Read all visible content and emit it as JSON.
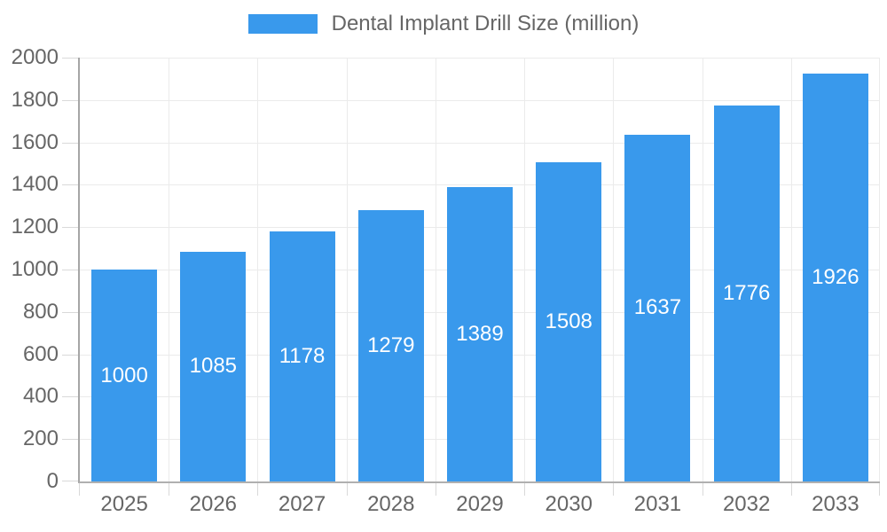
{
  "chart_data": {
    "type": "bar",
    "title": "Dental Implant Drill Size (million)",
    "legend_entries": [
      "Dental Implant Drill Size (million)"
    ],
    "legend_position": "top-center",
    "categories": [
      "2025",
      "2026",
      "2027",
      "2028",
      "2029",
      "2030",
      "2031",
      "2032",
      "2033"
    ],
    "values": [
      1000,
      1085,
      1178,
      1279,
      1389,
      1508,
      1637,
      1776,
      1926
    ],
    "bar_value_labels": [
      "1000",
      "1085",
      "1178",
      "1279",
      "1389",
      "1508",
      "1637",
      "1776",
      "1926"
    ],
    "xlabel": "",
    "ylabel": "",
    "ylim": [
      0,
      2000
    ],
    "y_ticks": [
      0,
      200,
      400,
      600,
      800,
      1000,
      1200,
      1400,
      1600,
      1800,
      2000
    ],
    "grid": true,
    "value_labels_position": "inside-center"
  },
  "colors": {
    "bar": "#3999EC",
    "bar_label_text": "#ffffff",
    "grid_line": "#ebebeb",
    "axis_line": "#a6a6a6",
    "tick_mark": "#d9d9d9",
    "tick_text": "#666666",
    "legend_text": "#666666",
    "background": "#ffffff"
  }
}
